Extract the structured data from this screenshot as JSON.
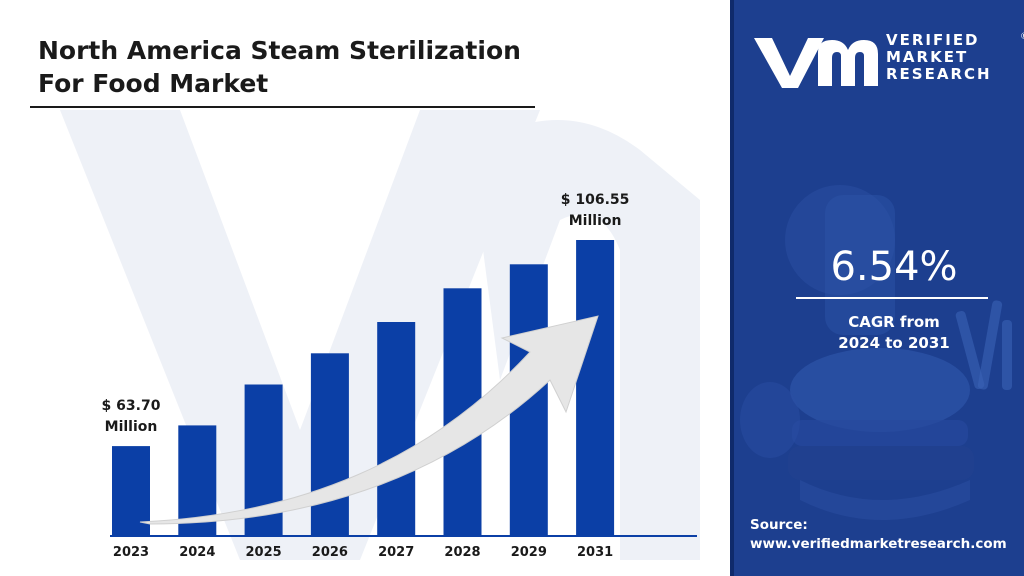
{
  "title": {
    "line1": "North America Steam Sterilization",
    "line2": "For Food Market"
  },
  "brand": {
    "line1": "VERIFIED",
    "line2": "MARKET",
    "line3": "RESEARCH",
    "registered": "®"
  },
  "cagr": {
    "value": "6.54%",
    "label_line1": "CAGR from",
    "label_line2": "2024 to 2031"
  },
  "source": {
    "label": "Source:",
    "url": "www.verifiedmarketresearch.com"
  },
  "colors": {
    "bar": "#0b3fa6",
    "panel": "#1d3f8f",
    "arrow": "#e6e6e6",
    "watermark": "#e9edf5"
  },
  "chart_data": {
    "type": "bar",
    "categories": [
      "2023",
      "2024",
      "2025",
      "2026",
      "2027",
      "2028",
      "2029",
      "2031"
    ],
    "values": [
      63.7,
      68.0,
      76.5,
      83.0,
      89.5,
      96.5,
      101.5,
      106.55
    ],
    "ylim": [
      45,
      112
    ],
    "grid": false,
    "legend": "none",
    "annotations": [
      {
        "index": 0,
        "line1": "$ 63.70",
        "line2": "Million"
      },
      {
        "index": 7,
        "line1": "$ 106.55",
        "line2": "Million"
      }
    ],
    "trend_arrow": true
  }
}
